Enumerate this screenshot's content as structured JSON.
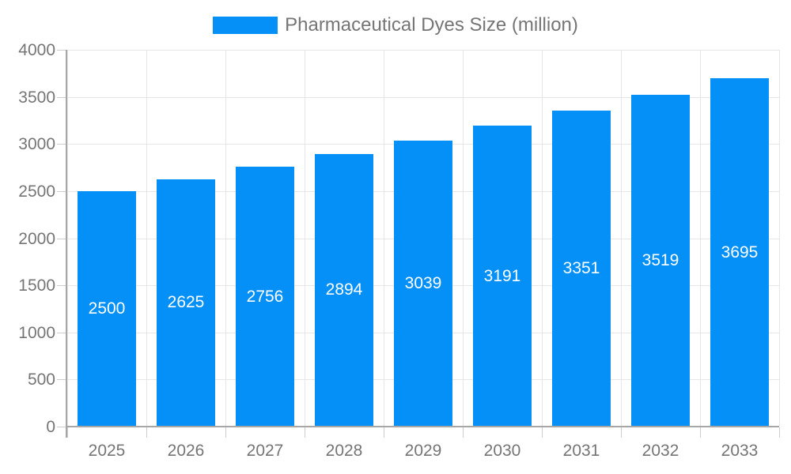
{
  "chart_data": {
    "type": "bar",
    "title": "Pharmaceutical Dyes Size (million)",
    "categories": [
      "2025",
      "2026",
      "2027",
      "2028",
      "2029",
      "2030",
      "2031",
      "2032",
      "2033"
    ],
    "values": [
      2500,
      2625,
      2756,
      2894,
      3039,
      3191,
      3351,
      3519,
      3695
    ],
    "series": [
      {
        "name": "Pharmaceutical Dyes Size (million)",
        "values": [
          2500,
          2625,
          2756,
          2894,
          3039,
          3191,
          3351,
          3519,
          3695
        ]
      }
    ],
    "xlabel": "",
    "ylabel": "",
    "ylim": [
      0,
      4000
    ],
    "ytick_step": 500,
    "yticks": [
      "0",
      "500",
      "1000",
      "1500",
      "2000",
      "2500",
      "3000",
      "3500",
      "4000"
    ],
    "grid": true,
    "legend_position": "top-center",
    "bar_labels": "inside-middle-white",
    "colors": {
      "bar": "#0590F8",
      "bar_label": "#FFFFFF",
      "grid": "#E6E6E6",
      "axis": "#A6A6A6",
      "tick": "#CCCCCC",
      "text": "#757575",
      "background": "#FFFFFF"
    }
  }
}
